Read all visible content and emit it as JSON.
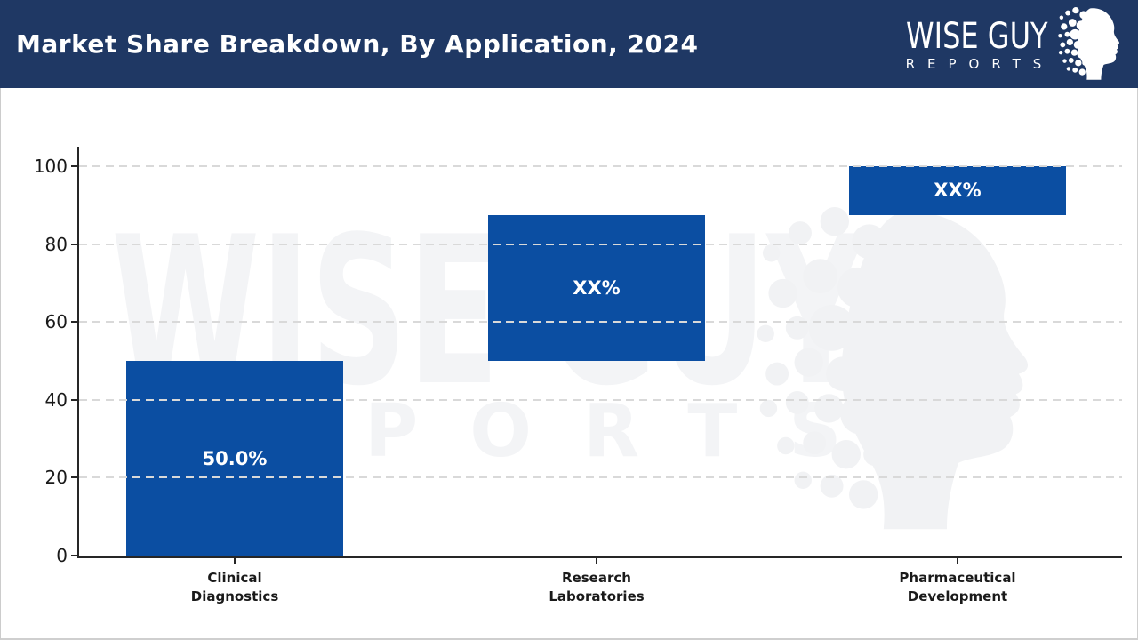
{
  "header": {
    "title": "Market Share Breakdown, By Application, 2024",
    "logo": {
      "line1": "WISE GUY",
      "line2": "REPORTS"
    }
  },
  "watermark": {
    "line1": "WISE GUY",
    "line2": "REPORTS"
  },
  "colors": {
    "header_bg": "#1F3864",
    "bar": "#0B4EA2",
    "grid": "#D9D9D9",
    "axis": "#262626",
    "bar_label": "#FFFFFF",
    "watermark": "#F2F3F5"
  },
  "chart_data": {
    "type": "bar",
    "subtype": "waterfall",
    "title": "Market Share Breakdown, By Application, 2024",
    "xlabel": "",
    "ylabel": "",
    "categories": [
      [
        "Clinical",
        "Diagnostics"
      ],
      [
        "Research",
        "Laboratories"
      ],
      [
        "Pharmaceutical",
        "Development"
      ]
    ],
    "bars": [
      {
        "category": "Clinical Diagnostics",
        "label": "50.0%",
        "start": 0,
        "end": 50,
        "value": 50.0
      },
      {
        "category": "Research Laboratories",
        "label": "XX%",
        "start": 50,
        "end": 87.5,
        "value": 37.5
      },
      {
        "category": "Pharmaceutical Development",
        "label": "XX%",
        "start": 87.5,
        "end": 100,
        "value": 12.5
      }
    ],
    "y_ticks": [
      0,
      20,
      40,
      60,
      80,
      100
    ],
    "ylim": [
      0,
      105
    ],
    "grid": "horizontal-dashed",
    "legend": null
  }
}
